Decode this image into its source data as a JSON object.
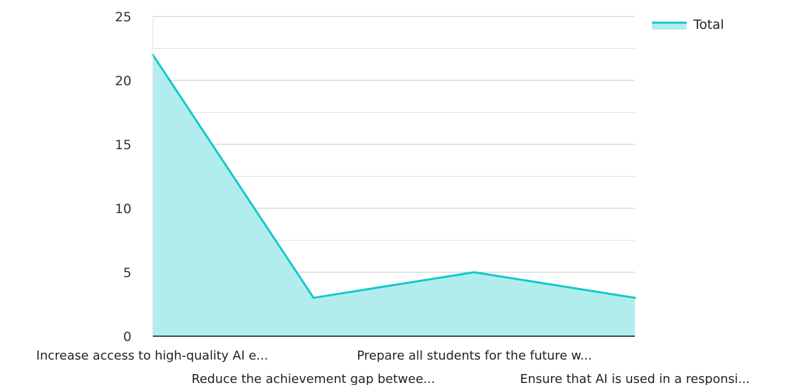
{
  "chart_data": {
    "type": "area",
    "categories": [
      "Increase access to high-quality AI e...",
      "Reduce the achievement gap betwee...",
      "Prepare all students for the future w...",
      "Ensure that AI is used in a responsi..."
    ],
    "series": [
      {
        "name": "Total",
        "values": [
          22,
          3,
          5,
          3
        ]
      }
    ],
    "ylim": [
      0,
      25
    ],
    "yticks": [
      0,
      5,
      10,
      15,
      20,
      25
    ],
    "grid": true,
    "legend": "top-right",
    "colors": {
      "line": "#12c8cc",
      "fill": "#b2eded",
      "grid_major": "#c4c4c4",
      "grid_minor": "#e2e2e2",
      "axis": "#444444"
    }
  }
}
